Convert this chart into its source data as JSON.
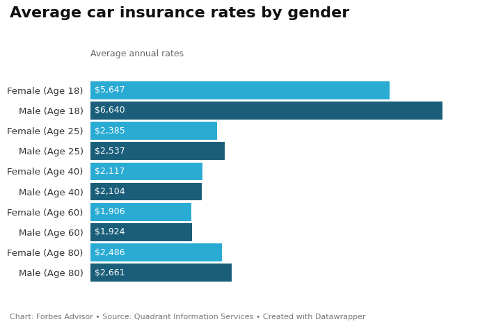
{
  "title": "Average car insurance rates by gender",
  "subtitle": "Average annual rates",
  "footnote": "Chart: Forbes Advisor • Source: Quadrant Information Services • Created with Datawrapper",
  "categories": [
    "Female (Age 18)",
    "Male (Age 18)",
    "Female (Age 25)",
    "Male (Age 25)",
    "Female (Age 40)",
    "Male (Age 40)",
    "Female (Age 60)",
    "Male (Age 60)",
    "Female (Age 80)",
    "Male (Age 80)"
  ],
  "values": [
    5647,
    6640,
    2385,
    2537,
    2117,
    2104,
    1906,
    1924,
    2486,
    2661
  ],
  "labels": [
    "$5,647",
    "$6,640",
    "$2,385",
    "$2,537",
    "$2,117",
    "$2,104",
    "$1,906",
    "$1,924",
    "$2,486",
    "$2,661"
  ],
  "bar_colors": [
    "#29ABD4",
    "#1A5E7A",
    "#29ABD4",
    "#1A5E7A",
    "#29ABD4",
    "#1A5E7A",
    "#29ABD4",
    "#1A5E7A",
    "#29ABD4",
    "#1A5E7A"
  ],
  "background_color": "#ffffff",
  "title_fontsize": 16,
  "subtitle_fontsize": 9,
  "label_fontsize": 9,
  "tick_fontsize": 9.5,
  "footnote_fontsize": 8,
  "bar_height": 0.88,
  "xlim": [
    0,
    7200
  ]
}
